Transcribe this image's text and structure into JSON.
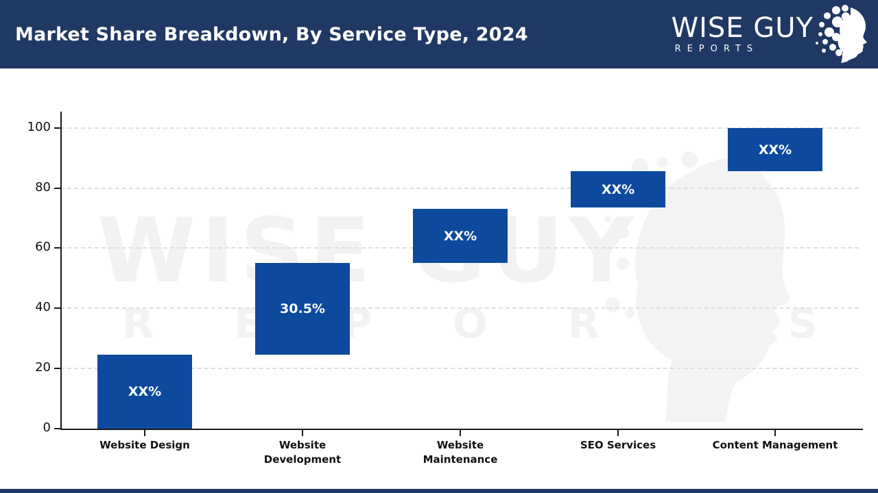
{
  "header": {
    "title": "Market Share Breakdown, By Service Type, 2024",
    "logo": {
      "wordmark": "WISE GUY",
      "reports": "REPORTS"
    }
  },
  "watermark": {
    "wordmark": "WISE GUY",
    "reports": "R E P O R T S"
  },
  "chart_data": {
    "type": "bar",
    "subtype": "waterfall",
    "title": "Market Share Breakdown, By Service Type, 2024",
    "units": "percent market share",
    "categories": [
      "Website Design",
      "Website Development",
      "Website Maintenance",
      "SEO Services",
      "Content Management"
    ],
    "category_label_lines": [
      [
        "Website Design"
      ],
      [
        "Website",
        "Development"
      ],
      [
        "Website",
        "Maintenance"
      ],
      [
        "SEO Services"
      ],
      [
        "Content Management"
      ]
    ],
    "bars": [
      {
        "category": "Website Design",
        "start": 0,
        "end": 24.5,
        "label": "XX%"
      },
      {
        "category": "Website Development",
        "start": 24.5,
        "end": 55,
        "label": "30.5%"
      },
      {
        "category": "Website Maintenance",
        "start": 55,
        "end": 73,
        "label": "XX%"
      },
      {
        "category": "SEO Services",
        "start": 73.5,
        "end": 85.5,
        "label": "XX%"
      },
      {
        "category": "Content Management",
        "start": 85.5,
        "end": 100,
        "label": "XX%"
      }
    ],
    "yticks": [
      0,
      20,
      40,
      60,
      80,
      100
    ],
    "ylim": [
      0,
      105
    ],
    "xlabel": "",
    "ylabel": "",
    "legend": null,
    "grid": "horizontal-dashed",
    "colors": {
      "bar": "#0d4a9e",
      "bar_label": "#ffffff",
      "header_bg": "#1f3864",
      "grid": "#dedede",
      "axis": "#1a1a1a",
      "watermark": "#f2f2f2"
    }
  }
}
